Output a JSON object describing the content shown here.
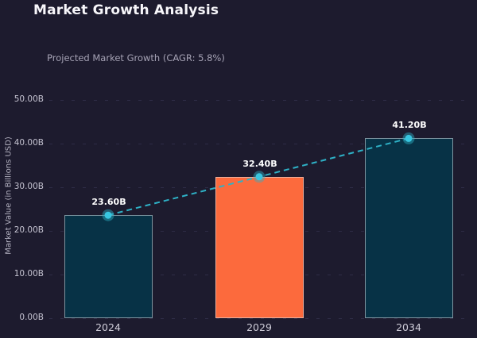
{
  "chart_data": {
    "type": "bar",
    "title": "Market Growth Analysis",
    "subtitle": "Projected Market Growth (CAGR: 5.8%)",
    "xlabel": "",
    "ylabel": "Market Value (in Billions USD)",
    "categories": [
      "2024",
      "2029",
      "2034"
    ],
    "values": [
      23.6,
      32.4,
      41.2
    ],
    "value_labels": [
      "23.60B",
      "32.40B",
      "41.20B"
    ],
    "bar_colors": [
      "#073246",
      "#fc6a3d",
      "#073246"
    ],
    "yticks": [
      0,
      10,
      20,
      30,
      40,
      50
    ],
    "ytick_labels": [
      "0.00B",
      "10.00B",
      "20.00B",
      "30.00B",
      "40.00B",
      "50.00B"
    ],
    "ylim": [
      0,
      50
    ],
    "grid": "horizontal-dashed",
    "legend": "none",
    "trend_line": {
      "type": "line",
      "values": [
        23.6,
        32.4,
        41.2
      ],
      "style": "dashed",
      "color": "#2eb1c6",
      "marker": "circle",
      "marker_color": "#38c6e0"
    },
    "colors": {
      "background": "#1d1b2e",
      "title_text": "#f7f6fa",
      "subtitle_text": "#a5a2b4",
      "tick_text": "#c4c2d0",
      "value_label_text": "#ffffff",
      "gridline": "#2e2c46"
    }
  }
}
